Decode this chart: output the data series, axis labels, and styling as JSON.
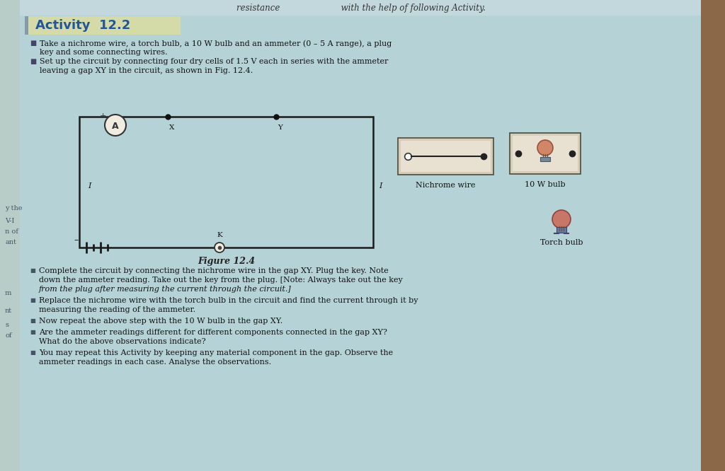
{
  "page_bg": "#aecdd3",
  "page_main_bg": "#b5d3d8",
  "title_bg": "#d8ddb0",
  "title_color": "#2255aa",
  "title_text": "Activity  12.2",
  "header_text": "resistance                       with the help of following Activity.",
  "bullet_color": "#333333",
  "text_color": "#222222",
  "figure_caption": "Figure 12.4",
  "nichrome_label": "Nichrome wire",
  "bulb10_label": "10 W bulb",
  "torch_label": "Torch bulb",
  "left_bg": "#b0bab5",
  "right_bg": "#8a6850",
  "margin_texts": [
    [
      7,
      290,
      "y the"
    ],
    [
      7,
      308,
      "V-I"
    ],
    [
      7,
      323,
      "n of"
    ],
    [
      7,
      338,
      "ant"
    ],
    [
      7,
      410,
      "m"
    ],
    [
      7,
      435,
      "nt"
    ],
    [
      7,
      455,
      "s"
    ],
    [
      7,
      470,
      "of"
    ]
  ],
  "bullet1_line1": "Take a nichrome wire, a torch bulb, a 10 W bulb and an ammeter (0 – 5 A range), a plug",
  "bullet1_line2": "key and some connecting wires.",
  "bullet2_line1": "Set up the circuit by connecting four dry cells of 1.5 V each in series with the ammeter",
  "bullet2_line2": "leaving a gap XY in the circuit, as shown in Fig. 12.4.",
  "b3_l1": "Complete the circuit by connecting the nichrome wire in the gap XY. Plug the key. Note",
  "b3_l2": "down the ammeter reading. Take out the key from the plug. [Note: Always take out the key",
  "b3_l3": "from the plug after measuring the current through the circuit.]",
  "b4_l1": "Replace the nichrome wire with the torch bulb in the circuit and find the current through it by",
  "b4_l2": "measuring the reading of the ammeter.",
  "b5_l1": "Now repeat the above step with the 10 W bulb in the gap XY.",
  "b6_l1": "Are the ammeter readings different for different components connected in the gap XY?",
  "b6_l2": "What do the above observations indicate?",
  "b7_l1": "You may repeat this Activity by keeping any material component in the gap. Observe the",
  "b7_l2": "ammeter readings in each case. Analyse the observations."
}
